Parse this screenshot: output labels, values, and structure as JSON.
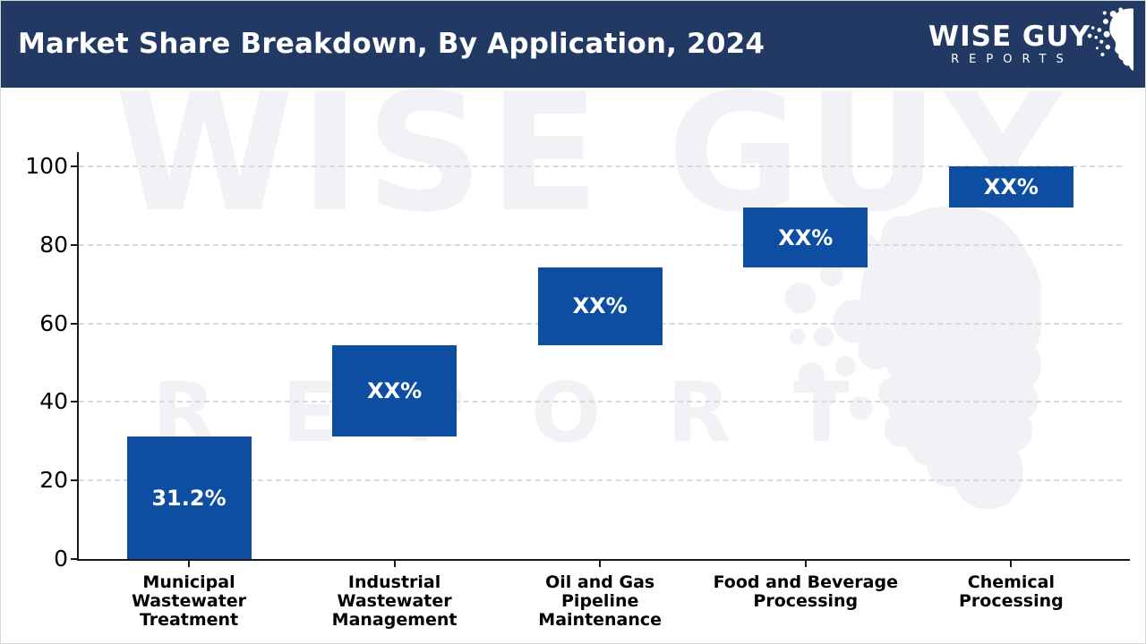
{
  "header": {
    "title": "Market Share Breakdown, By Application, 2024",
    "logo": {
      "line1": "WISE GUY",
      "line2": "REPORTS"
    }
  },
  "watermark": {
    "line1": "WISE GUY",
    "line2": "REPORTS"
  },
  "colors": {
    "header_bg": "#223a63",
    "bar": "#0d4da2",
    "watermark": "#f2f2f6",
    "gridline": "#d9d9d9",
    "axis": "#1a1a1a",
    "title_text": "#ffffff"
  },
  "chart_data": {
    "type": "bar",
    "subtype": "floating-waterfall",
    "title": "Market Share Breakdown, By Application, 2024",
    "categories": [
      "Municipal\nWastewater\nTreatment",
      "Industrial\nWastewater\nManagement",
      "Oil and Gas\nPipeline\nMaintenance",
      "Food and Beverage\nProcessing",
      "Chemical\nProcessing"
    ],
    "bars": [
      {
        "start": 0,
        "end": 31.2,
        "label": "31.2%"
      },
      {
        "start": 31.2,
        "end": 54.5,
        "label": "XX%"
      },
      {
        "start": 54.5,
        "end": 74.2,
        "label": "XX%"
      },
      {
        "start": 74.2,
        "end": 89.5,
        "label": "XX%"
      },
      {
        "start": 89.5,
        "end": 100,
        "label": "XX%"
      }
    ],
    "yticks": [
      0,
      20,
      40,
      60,
      80,
      100
    ],
    "ylim": [
      0,
      100
    ],
    "xlabel": "",
    "ylabel": "",
    "grid": "horizontal-dashed",
    "legend": false,
    "bar_color": "#0d4da2"
  }
}
